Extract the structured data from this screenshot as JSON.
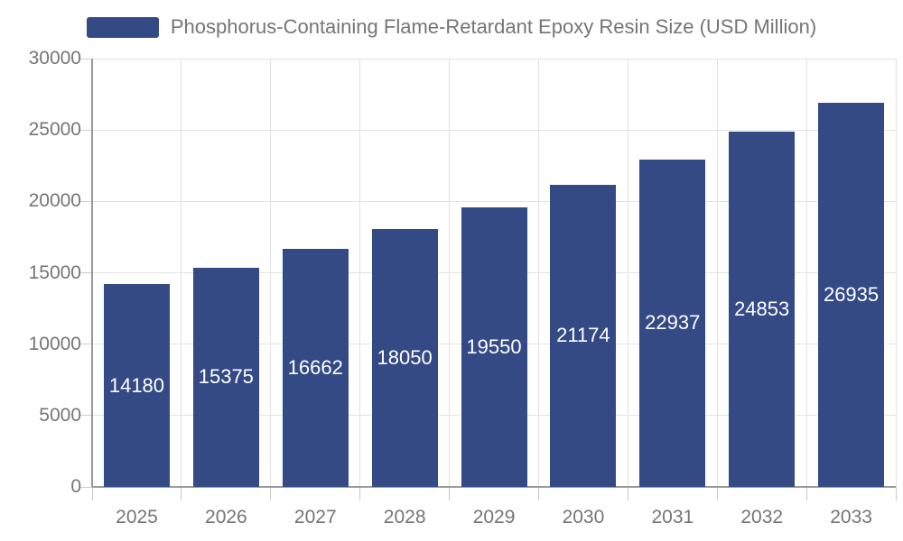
{
  "chart_data": {
    "type": "bar",
    "title": "Phosphorus-Containing Flame-Retardant Epoxy Resin Size (USD Million)",
    "categories": [
      "2025",
      "2026",
      "2027",
      "2028",
      "2029",
      "2030",
      "2031",
      "2032",
      "2033"
    ],
    "series": [
      {
        "name": "Phosphorus-Containing Flame-Retardant Epoxy Resin Size (USD Million)",
        "values": [
          14180,
          15375,
          16662,
          18050,
          19550,
          21174,
          22937,
          24853,
          26935
        ]
      }
    ],
    "xlabel": "",
    "ylabel": "",
    "ylim": [
      0,
      30000
    ],
    "yticks": [
      0,
      5000,
      10000,
      15000,
      20000,
      25000,
      30000
    ],
    "grid": true,
    "legend_position": "top",
    "value_labels": "inside-center",
    "colors": {
      "bar": "#344a84",
      "bar_label": "#ffffff",
      "axis": "#999999",
      "grid_line": "#e2e2e5",
      "tick": "#cccccc",
      "text": "#757575",
      "background": "#ffffff"
    }
  }
}
